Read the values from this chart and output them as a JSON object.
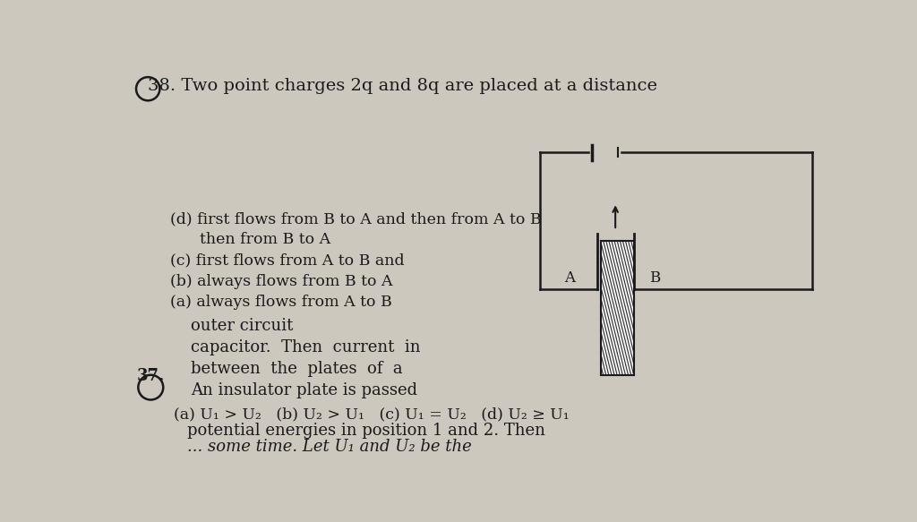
{
  "bg_color": "#ccc8be",
  "text_color": "#1a1a1a",
  "top_partial": "... some time. Let U₁ and U₂ be the",
  "title_line1": "potential energies in position 1 and 2. Then",
  "options_q36": "(a) U₁ > U₂   (b) U₂ > U₁   (c) U₁ = U₂   (d) U₂ ≥ U₁",
  "q37_label": "37.",
  "q37_text_lines": [
    "An insulator plate is passed",
    "between  the  plates  of  a",
    "capacitor.  Then  current  in",
    "outer circuit"
  ],
  "q37_options": [
    "(a) always flows from A to B",
    "(b) always flows from B to A",
    "(c) first flows from A to B and",
    "      then from B to A",
    "(d) first flows from B to A and then from A to B"
  ],
  "q38_text": "38. Two point charges 2q and 8q are placed at a distance",
  "font_size_main": 13,
  "font_size_options": 12.5
}
